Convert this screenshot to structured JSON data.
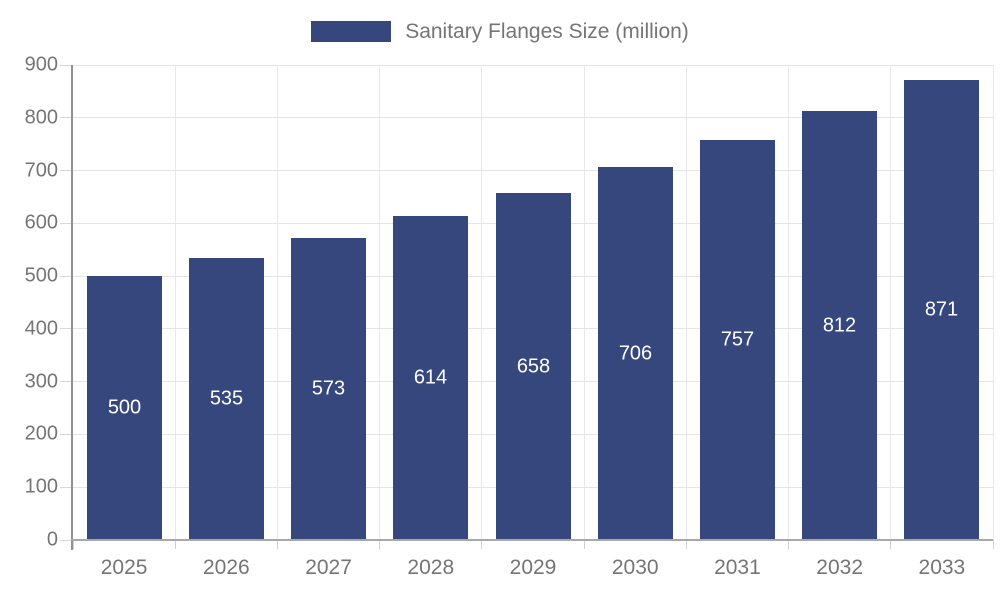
{
  "chart_data": {
    "type": "bar",
    "title": "Sanitary Flanges Size (million)",
    "categories": [
      "2025",
      "2026",
      "2027",
      "2028",
      "2029",
      "2030",
      "2031",
      "2032",
      "2033"
    ],
    "values": [
      500,
      535,
      573,
      614,
      658,
      706,
      757,
      812,
      871
    ],
    "xlabel": "",
    "ylabel": "",
    "ylim": [
      0,
      900
    ],
    "ytick_step": 100,
    "grid": true,
    "legend_position": "top",
    "colors": {
      "bar": "#35477d",
      "bar_value_label": "#ffffff",
      "axis_text": "#757575",
      "gridline": "#e4e4e4"
    }
  }
}
